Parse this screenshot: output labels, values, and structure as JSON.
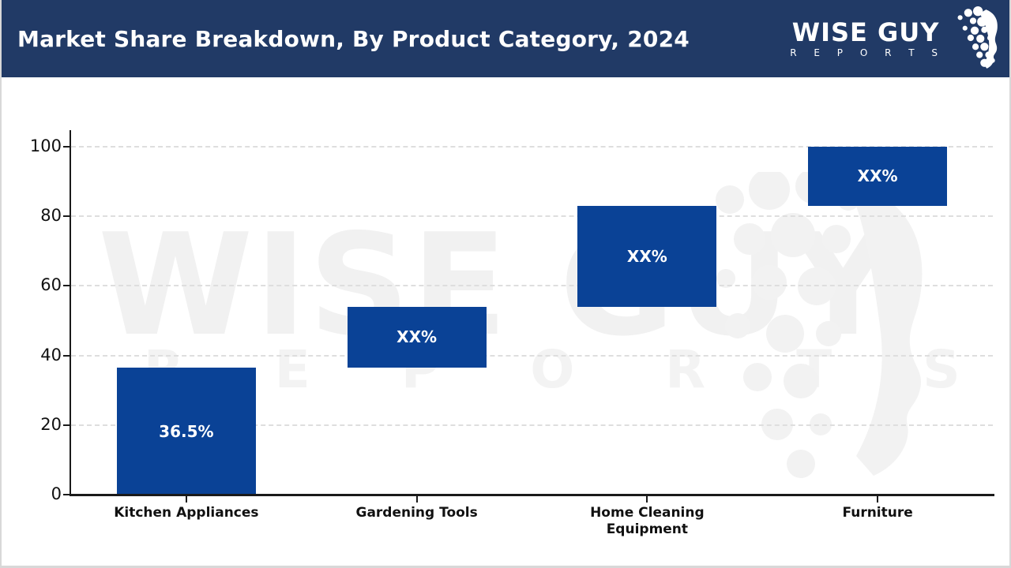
{
  "header": {
    "title": "Market Share Breakdown, By Product Category, 2024",
    "bg_color": "#213a66",
    "logo": {
      "line1": "WISE GUY",
      "line2": "R E P O R T S"
    }
  },
  "watermark": {
    "line1": "WISE GUY",
    "line2": "R E P O R T S"
  },
  "chart_data": {
    "type": "bar",
    "subtype": "waterfall",
    "title": "Market Share Breakdown, By Product Category, 2024",
    "categories": [
      "Kitchen Appliances",
      "Gardening Tools",
      "Home Cleaning\nEquipment",
      "Furniture"
    ],
    "segments": [
      {
        "category": "Kitchen Appliances",
        "start": 0,
        "end": 36.5,
        "label": "36.5%"
      },
      {
        "category": "Gardening Tools",
        "start": 36.5,
        "end": 54,
        "label": "XX%"
      },
      {
        "category": "Home Cleaning Equipment",
        "start": 54,
        "end": 83,
        "label": "XX%"
      },
      {
        "category": "Furniture",
        "start": 83,
        "end": 100,
        "label": "XX%"
      }
    ],
    "xlabel": "",
    "ylabel": "",
    "ylim": [
      0,
      100
    ],
    "yticks": [
      0,
      20,
      40,
      60,
      80,
      100
    ],
    "grid": "horizontal-dashed",
    "legend": "none",
    "bar_color": "#0a4296",
    "bar_label_color": "#ffffff",
    "axis_color": "#1a1a1a"
  }
}
